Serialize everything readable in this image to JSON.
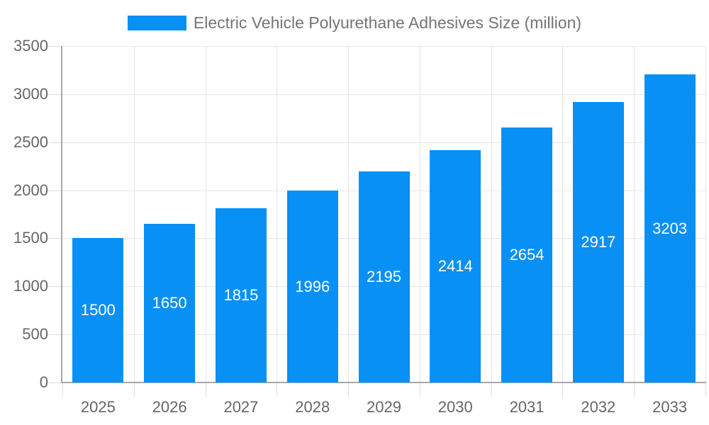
{
  "colors": {
    "bar": "#0990f5",
    "bar_label": "#ffffff",
    "axis_label": "#666666",
    "title_text": "#757575",
    "grid": "#e6e6e6",
    "tick": "#dcdcdc",
    "axis_line": "#a8a8a8",
    "background": "#ffffff"
  },
  "chart_data": {
    "type": "bar",
    "title": "Electric Vehicle Polyurethane Adhesives Size (million)",
    "categories": [
      "2025",
      "2026",
      "2027",
      "2028",
      "2029",
      "2030",
      "2031",
      "2032",
      "2033"
    ],
    "series": [
      {
        "name": "Electric Vehicle Polyurethane Adhesives Size (million)",
        "values": [
          1500,
          1650,
          1815,
          1996,
          2195,
          2414,
          2654,
          2917,
          3203
        ]
      }
    ],
    "bar_labels": [
      "1500",
      "1650",
      "1815",
      "1996",
      "2195",
      "2414",
      "2654",
      "2917",
      "3203"
    ],
    "xlabel": "",
    "ylabel": "",
    "ylim": [
      0,
      3500
    ],
    "yticks": [
      0,
      500,
      1000,
      1500,
      2000,
      2500,
      3000,
      3500
    ],
    "grid": true,
    "legend_position": "top",
    "bar_label_position": "inside-center"
  }
}
